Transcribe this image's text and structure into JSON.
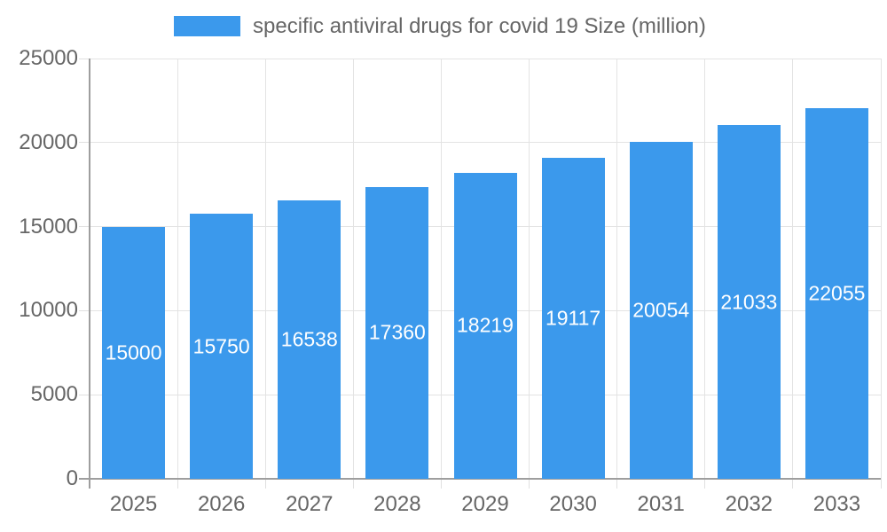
{
  "legend": {
    "label": "specific antiviral drugs for covid 19 Size (million)"
  },
  "chart_data": {
    "type": "bar",
    "title": "specific antiviral drugs for covid 19 Size (million)",
    "categories": [
      "2025",
      "2026",
      "2027",
      "2028",
      "2029",
      "2030",
      "2031",
      "2032",
      "2033"
    ],
    "values": [
      15000,
      15750,
      16538,
      17360,
      18219,
      19117,
      20054,
      21033,
      22055
    ],
    "xlabel": "",
    "ylabel": "",
    "ylim": [
      0,
      25000
    ],
    "yticks": [
      0,
      5000,
      10000,
      15000,
      20000,
      25000
    ],
    "grid": "on",
    "legend_position": "top",
    "colors": {
      "bar": "#3B99EC",
      "bar_label": "#FFFFFF",
      "axis_line": "#9E9E9E",
      "gridline": "#E3E3E3",
      "tick": "#E0E0E0",
      "text": "#666666",
      "background": "#FFFFFF"
    }
  }
}
